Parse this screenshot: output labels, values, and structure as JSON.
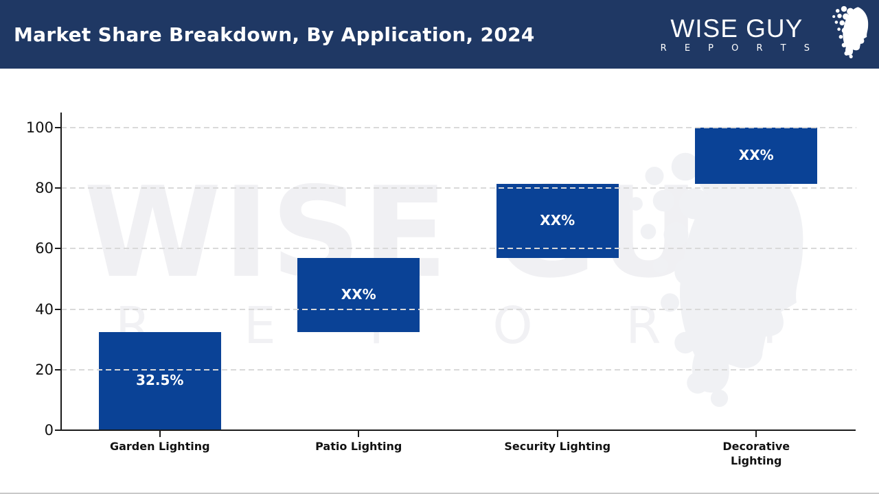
{
  "header": {
    "title": "Market Share Breakdown, By Application, 2024",
    "logo": {
      "line1": "WISE GUY",
      "line2": "R E P O R T S"
    }
  },
  "watermark": {
    "line1": "WISE GUY",
    "line2": "R E P O R T S"
  },
  "colors": {
    "header_bg": "#1f3864",
    "bar": "#0a4296",
    "grid": "#d9d9d9",
    "axis": "#1a1a1a",
    "watermark": "#f0f0f3",
    "bar_label": "#ffffff"
  },
  "chart_data": {
    "type": "bar",
    "subtype": "waterfall",
    "title": "Market Share Breakdown, By Application, 2024",
    "xlabel": "",
    "ylabel": "",
    "categories": [
      "Garden Lighting",
      "Patio Lighting",
      "Security Lighting",
      "Decorative Lighting"
    ],
    "segments": [
      {
        "category": "Garden Lighting",
        "start": 0,
        "end": 32.5,
        "label": "32.5%"
      },
      {
        "category": "Patio Lighting",
        "start": 32.5,
        "end": 57,
        "label": "XX%"
      },
      {
        "category": "Security Lighting",
        "start": 57,
        "end": 81.5,
        "label": "XX%"
      },
      {
        "category": "Decorative Lighting",
        "start": 81.5,
        "end": 100,
        "label": "XX%"
      }
    ],
    "yticks": [
      0,
      20,
      40,
      60,
      80,
      100
    ],
    "ylim": [
      0,
      105
    ],
    "grid": "dashed-horizontal",
    "legend": "none"
  }
}
